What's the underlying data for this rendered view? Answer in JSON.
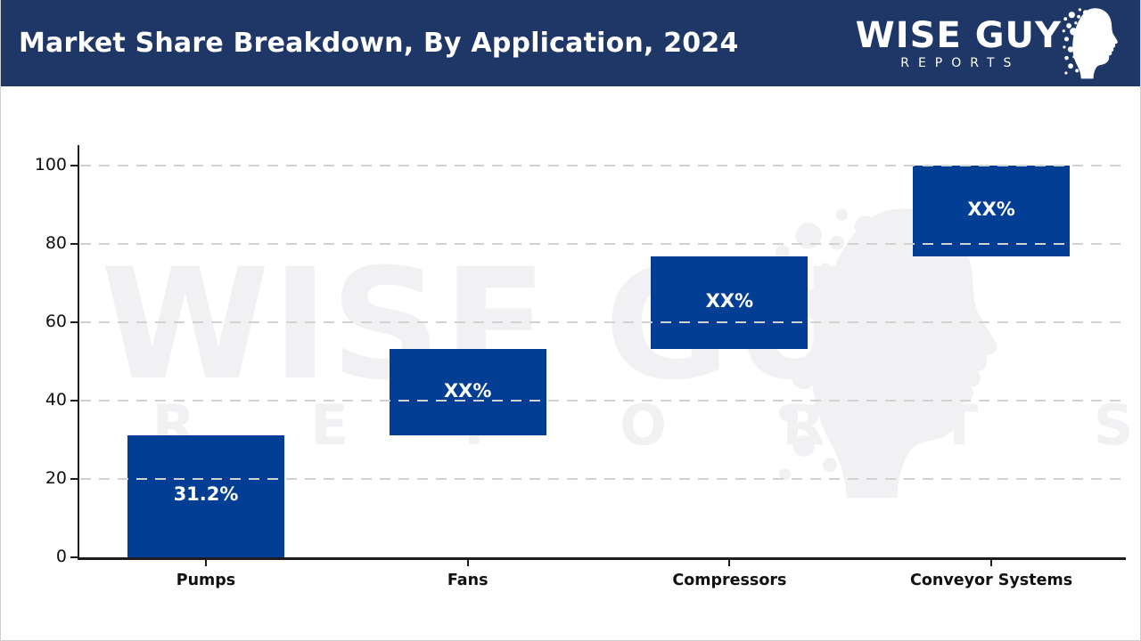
{
  "header": {
    "title": "Market Share Breakdown, By Application, 2024",
    "logo": {
      "wordmark": "WISE GUY",
      "subtext": "REPORTS"
    }
  },
  "watermark": {
    "wordmark": "WISE GUY",
    "subtext": "R E P O R T S"
  },
  "colors": {
    "header_bg": "#1f3766",
    "header_text": "#ffffff",
    "bar": "#023f94",
    "bar_label": "#ffffff",
    "grid": "#d2d2d2",
    "axis": "#1c1c1c",
    "tick_label": "#111111",
    "watermark": "#f1f1f3"
  },
  "chart_data": {
    "type": "bar",
    "subtype": "waterfall",
    "title": "Market Share Breakdown, By Application, 2024",
    "categories": [
      "Pumps",
      "Fans",
      "Compressors",
      "Conveyor Systems"
    ],
    "series": [
      {
        "name": "Market share (%)",
        "segments": [
          {
            "category": "Pumps",
            "start": 0,
            "end": 31.2,
            "label": "31.2%"
          },
          {
            "category": "Fans",
            "start": 31.2,
            "end": 53.1,
            "label": "XX%"
          },
          {
            "category": "Compressors",
            "start": 53.1,
            "end": 76.9,
            "label": "XX%"
          },
          {
            "category": "Conveyor Systems",
            "start": 76.9,
            "end": 100,
            "label": "XX%"
          }
        ]
      }
    ],
    "xlabel": "",
    "ylabel": "",
    "yticks": [
      0,
      20,
      40,
      60,
      80,
      100
    ],
    "ylim": [
      0,
      105
    ],
    "grid": "horizontal-dashed",
    "legend": "none"
  }
}
